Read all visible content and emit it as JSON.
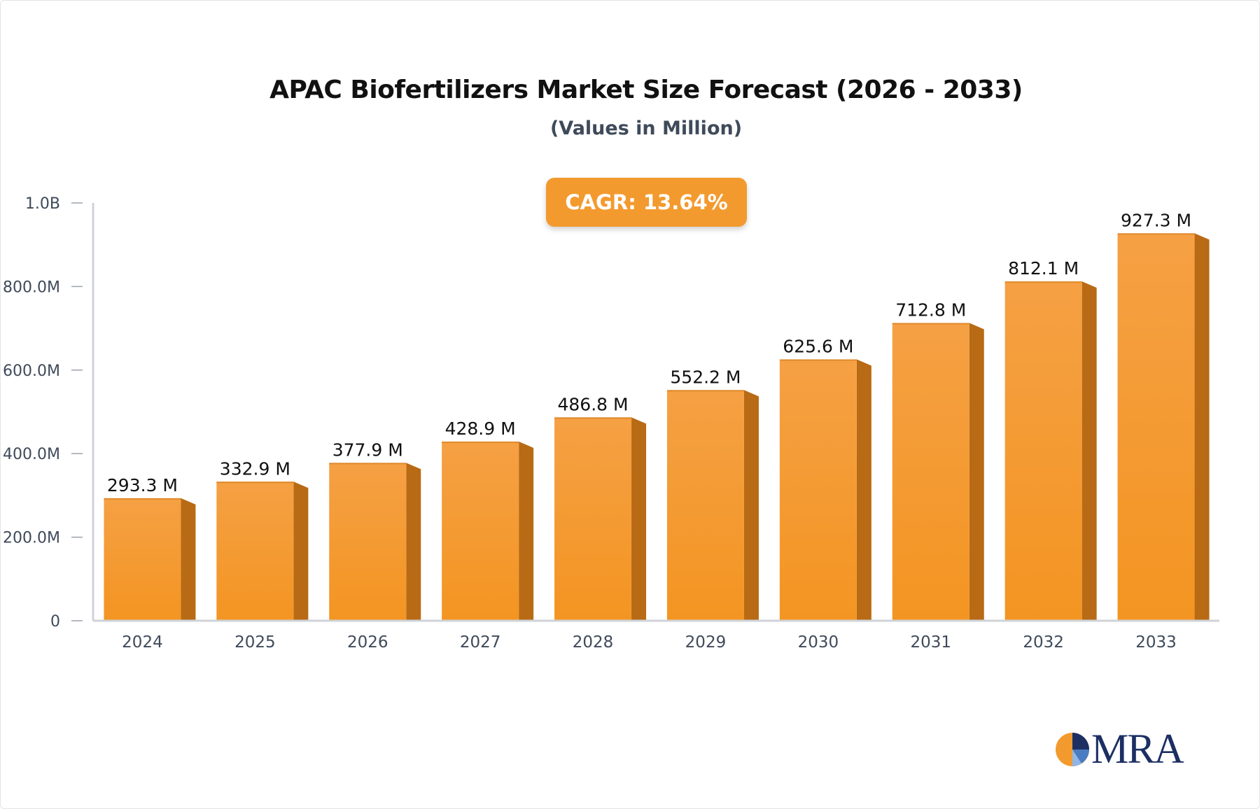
{
  "title": "APAC Biofertilizers Market Size Forecast (2026 - 2033)",
  "subtitle": "(Values in Million)",
  "cagr_label": "CAGR: 13.64%",
  "logo_text": "MRA",
  "colors": {
    "bar_front": "#f5a044",
    "bar_front_bottom": "#f39522",
    "bar_side": "#b86a14",
    "bar_top": "#e08a2c",
    "axis": "#cfd3d8",
    "tick_text": "#3f4a5a",
    "label_text": "#111111",
    "cagr_bg": "#f39a2f",
    "logo_navy": "#1c2f63",
    "logo_orange": "#f39a2f"
  },
  "chart_data": {
    "type": "bar",
    "categories": [
      "2024",
      "2025",
      "2026",
      "2027",
      "2028",
      "2029",
      "2030",
      "2031",
      "2032",
      "2033"
    ],
    "series": [
      {
        "values": [
          293.3,
          332.9,
          377.9,
          428.9,
          486.8,
          552.2,
          625.6,
          712.8,
          812.1,
          927.3
        ]
      }
    ],
    "value_labels": [
      "293.3 M",
      "332.9 M",
      "377.9 M",
      "428.9 M",
      "486.8 M",
      "552.2 M",
      "625.6 M",
      "712.8 M",
      "812.1 M",
      "927.3 M"
    ],
    "y_ticks": [
      0,
      200,
      400,
      600,
      800,
      1000
    ],
    "y_tick_labels": [
      "0",
      "200.0M",
      "400.0M",
      "600.0M",
      "800.0M",
      "1.0B"
    ],
    "ylim": [
      0,
      1000
    ],
    "xlabel": "",
    "ylabel": "",
    "grid": false,
    "legend": "none"
  }
}
